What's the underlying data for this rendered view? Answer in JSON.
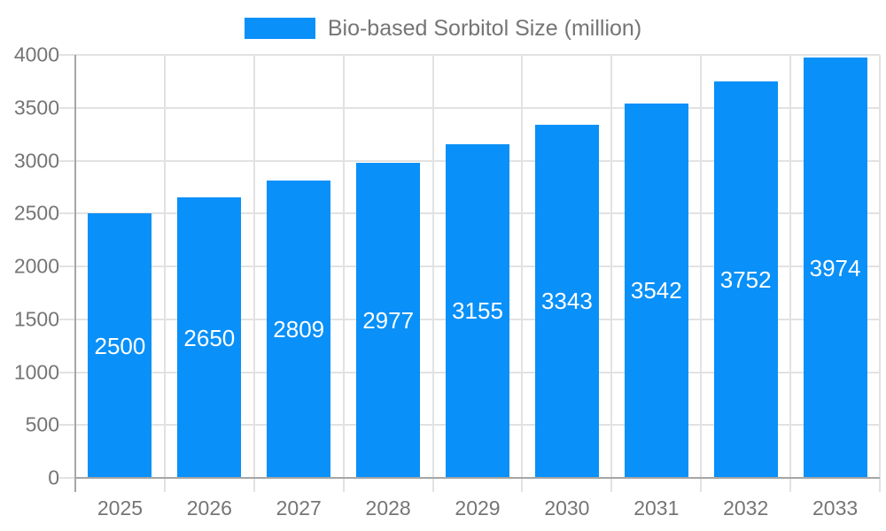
{
  "legend": {
    "label": "Bio-based Sorbitol Size (million)"
  },
  "chart_data": {
    "type": "bar",
    "title": "Bio-based Sorbitol Size (million)",
    "categories": [
      "2025",
      "2026",
      "2027",
      "2028",
      "2029",
      "2030",
      "2031",
      "2032",
      "2033"
    ],
    "values": [
      2500,
      2650,
      2809,
      2977,
      3155,
      3343,
      3542,
      3752,
      3974
    ],
    "series_name": "Bio-based Sorbitol Size (million)",
    "xlabel": "",
    "ylabel": "",
    "ylim": [
      0,
      4000
    ],
    "yticks": [
      0,
      500,
      1000,
      1500,
      2000,
      2500,
      3000,
      3500,
      4000
    ],
    "grid": true,
    "legend_position": "top",
    "bar_value_labels": true
  },
  "colors": {
    "bar": "#0990f9",
    "bar_label_text": "#ffffff",
    "axis_text": "#757575",
    "grid_line": "#e2e2e2",
    "axis_line": "#a6a6a6",
    "background": "#ffffff"
  }
}
